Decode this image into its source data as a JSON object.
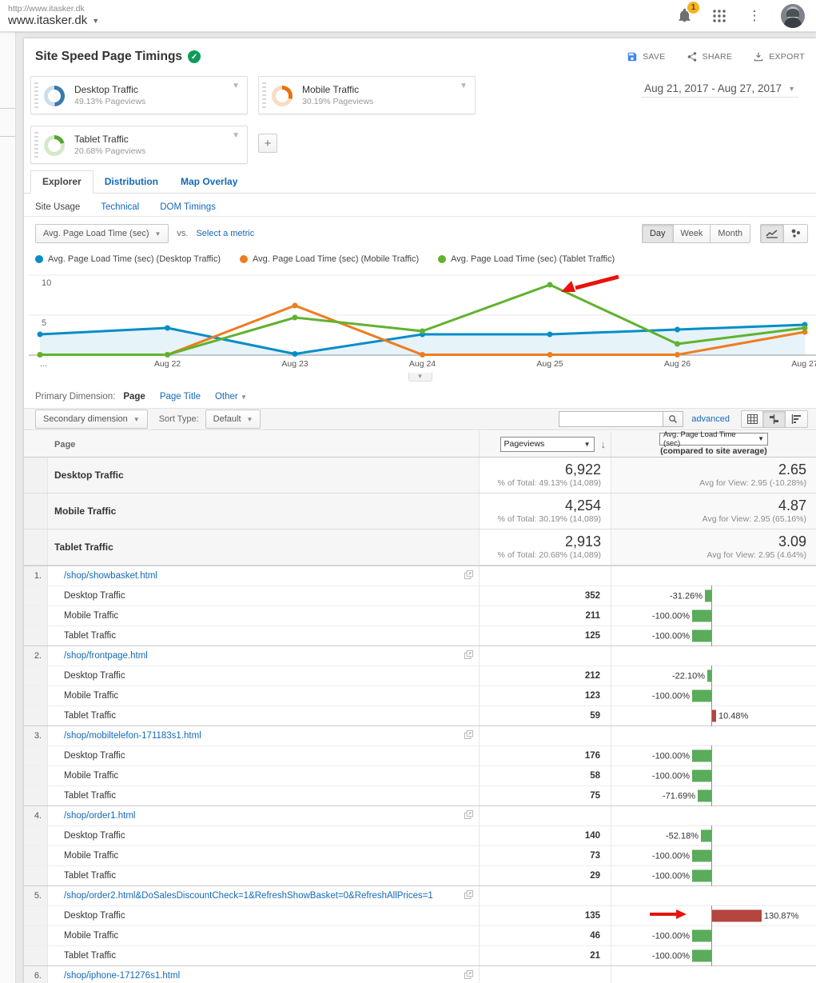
{
  "topbar": {
    "url": "http://www.itasker.dk",
    "account": "www.itasker.dk",
    "notification_count": "1"
  },
  "header": {
    "title": "Site Speed Page Timings",
    "actions": {
      "save": "SAVE",
      "share": "SHARE",
      "export": "EXPORT"
    },
    "date_range": "Aug 21, 2017 - Aug 27, 2017"
  },
  "segments": [
    {
      "name": "Desktop Traffic",
      "sub": "49.13% Pageviews",
      "pct": 49.13,
      "color": "#3579b1"
    },
    {
      "name": "Mobile Traffic",
      "sub": "30.19% Pageviews",
      "pct": 30.19,
      "color": "#e8730e"
    },
    {
      "name": "Tablet Traffic",
      "sub": "20.68% Pageviews",
      "pct": 20.68,
      "color": "#55a82e"
    }
  ],
  "tabs": {
    "items": [
      "Explorer",
      "Distribution",
      "Map Overlay"
    ],
    "active": "Explorer",
    "subtabs": [
      "Site Usage",
      "Technical",
      "DOM Timings"
    ],
    "active_subtab": "Site Usage"
  },
  "controls": {
    "metric_dropdown": "Avg. Page Load Time (sec)",
    "vs": "vs.",
    "select_metric": "Select a metric",
    "granularity": [
      "Day",
      "Week",
      "Month"
    ],
    "active_granularity": "Day"
  },
  "chart_data": {
    "type": "line",
    "x": [
      "Aug 21",
      "Aug 22",
      "Aug 23",
      "Aug 24",
      "Aug 25",
      "Aug 26",
      "Aug 27"
    ],
    "x_tick_labels": [
      "...",
      "Aug 22",
      "Aug 23",
      "Aug 24",
      "Aug 25",
      "Aug 26",
      "Aug 27"
    ],
    "ylabel": "Avg. Page Load Time (sec)",
    "ylim": [
      0,
      10
    ],
    "yticks": [
      5,
      10
    ],
    "grid": true,
    "legend_position": "top",
    "series": [
      {
        "name": "Avg. Page Load Time (sec) (Desktop Traffic)",
        "color": "#058dc7",
        "area": true,
        "values": [
          2.6,
          3.4,
          0.15,
          2.6,
          2.6,
          3.2,
          3.8
        ]
      },
      {
        "name": "Avg. Page Load Time (sec) (Mobile Traffic)",
        "color": "#ee7d20",
        "area": false,
        "values": [
          0.05,
          0.05,
          6.2,
          0.05,
          0.05,
          0.05,
          2.9
        ]
      },
      {
        "name": "Avg. Page Load Time (sec) (Tablet Traffic)",
        "color": "#61b22f",
        "area": false,
        "values": [
          0.05,
          0.05,
          4.7,
          3.0,
          8.8,
          1.4,
          3.4
        ]
      }
    ],
    "annotations": [
      {
        "type": "red-arrow",
        "target": "Tablet Traffic peak Aug 25"
      }
    ]
  },
  "dimension_bar": {
    "label": "Primary Dimension:",
    "options": [
      "Page",
      "Page Title",
      "Other"
    ],
    "active": "Page"
  },
  "toolbar": {
    "secondary_dimension": "Secondary dimension",
    "sort_type_label": "Sort Type:",
    "sort_type_value": "Default",
    "search_value": "",
    "advanced": "advanced"
  },
  "table": {
    "col_page": "Page",
    "col_pageviews": "Pageviews",
    "col_metric": "Avg. Page Load Time (sec)",
    "col_metric_sub": "(compared to site average)",
    "summary": [
      {
        "label": "Desktop Traffic",
        "pageviews": "6,922",
        "pv_sub": "% of Total: 49.13% (14,089)",
        "metric": "2.65",
        "metric_sub": "Avg for View: 2.95 (-10.28%)"
      },
      {
        "label": "Mobile Traffic",
        "pageviews": "4,254",
        "pv_sub": "% of Total: 30.19% (14,089)",
        "metric": "4.87",
        "metric_sub": "Avg for View: 2.95 (65.16%)"
      },
      {
        "label": "Tablet Traffic",
        "pageviews": "2,913",
        "pv_sub": "% of Total: 20.68% (14,089)",
        "metric": "3.09",
        "metric_sub": "Avg for View: 2.95 (4.64%)"
      }
    ],
    "rows": [
      {
        "num": "1.",
        "page": "/shop/showbasket.html",
        "entries": [
          {
            "label": "Desktop Traffic",
            "pageviews": "352",
            "delta": "-31.26%",
            "value": -31.26
          },
          {
            "label": "Mobile Traffic",
            "pageviews": "211",
            "delta": "-100.00%",
            "value": -100
          },
          {
            "label": "Tablet Traffic",
            "pageviews": "125",
            "delta": "-100.00%",
            "value": -100
          }
        ]
      },
      {
        "num": "2.",
        "page": "/shop/frontpage.html",
        "entries": [
          {
            "label": "Desktop Traffic",
            "pageviews": "212",
            "delta": "-22.10%",
            "value": -22.1
          },
          {
            "label": "Mobile Traffic",
            "pageviews": "123",
            "delta": "-100.00%",
            "value": -100
          },
          {
            "label": "Tablet Traffic",
            "pageviews": "59",
            "delta": "10.48%",
            "value": 10.48
          }
        ]
      },
      {
        "num": "3.",
        "page": "/shop/mobiltelefon-171183s1.html",
        "entries": [
          {
            "label": "Desktop Traffic",
            "pageviews": "176",
            "delta": "-100.00%",
            "value": -100
          },
          {
            "label": "Mobile Traffic",
            "pageviews": "58",
            "delta": "-100.00%",
            "value": -100
          },
          {
            "label": "Tablet Traffic",
            "pageviews": "75",
            "delta": "-71.69%",
            "value": -71.69
          }
        ]
      },
      {
        "num": "4.",
        "page": "/shop/order1.html",
        "entries": [
          {
            "label": "Desktop Traffic",
            "pageviews": "140",
            "delta": "-52.18%",
            "value": -52.18
          },
          {
            "label": "Mobile Traffic",
            "pageviews": "73",
            "delta": "-100.00%",
            "value": -100
          },
          {
            "label": "Tablet Traffic",
            "pageviews": "29",
            "delta": "-100.00%",
            "value": -100
          }
        ]
      },
      {
        "num": "5.",
        "page": "/shop/order2.html&DoSalesDiscountCheck=1&RefreshShowBasket=0&RefreshAllPrices=1",
        "entries": [
          {
            "label": "Desktop Traffic",
            "pageviews": "135",
            "delta": "130.87%",
            "value": 130.87,
            "arrow": true
          },
          {
            "label": "Mobile Traffic",
            "pageviews": "46",
            "delta": "-100.00%",
            "value": -100
          },
          {
            "label": "Tablet Traffic",
            "pageviews": "21",
            "delta": "-100.00%",
            "value": -100
          }
        ]
      },
      {
        "num": "6.",
        "page": "/shop/iphone-171276s1.html",
        "entries": []
      }
    ]
  },
  "colors": {
    "positive_bar": "#b4453f",
    "negative_bar": "#5aab5a",
    "annotation_arrow": "#e8130c",
    "link_blue": "#1569b8"
  }
}
